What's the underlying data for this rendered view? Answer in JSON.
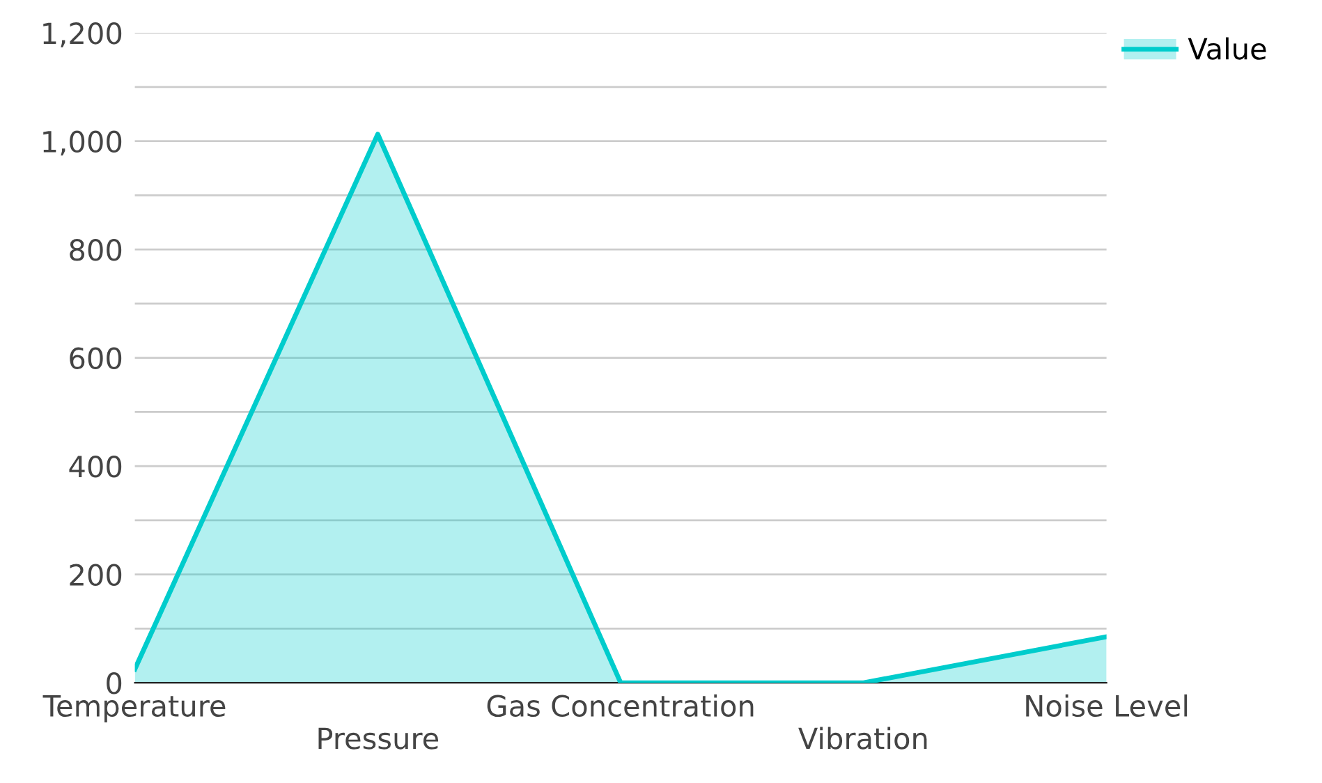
{
  "chart_data": {
    "type": "area",
    "categories": [
      "Temperature",
      "Pressure",
      "Gas Concentration",
      "Vibration",
      "Noise Level"
    ],
    "series": [
      {
        "name": "Value",
        "color": "#00cccc",
        "values": [
          25,
          1013,
          0,
          0,
          85
        ]
      }
    ],
    "ylim": [
      0,
      1200
    ],
    "yticks": [
      0,
      {
        "value": 100,
        "label": null
      },
      {
        "value": 200,
        "label": "200"
      },
      {
        "value": 300,
        "label": null
      },
      {
        "value": 400,
        "label": "400"
      },
      {
        "value": 500,
        "label": null
      },
      {
        "value": 600,
        "label": "600"
      },
      {
        "value": 700,
        "label": null
      },
      {
        "value": 800,
        "label": "800"
      },
      {
        "value": 900,
        "label": null
      },
      {
        "value": 1000,
        "label": "1,000"
      },
      {
        "value": 1100,
        "label": null
      },
      {
        "value": 1200,
        "label": "1,200"
      }
    ],
    "grid": "y",
    "legend": "top right"
  }
}
